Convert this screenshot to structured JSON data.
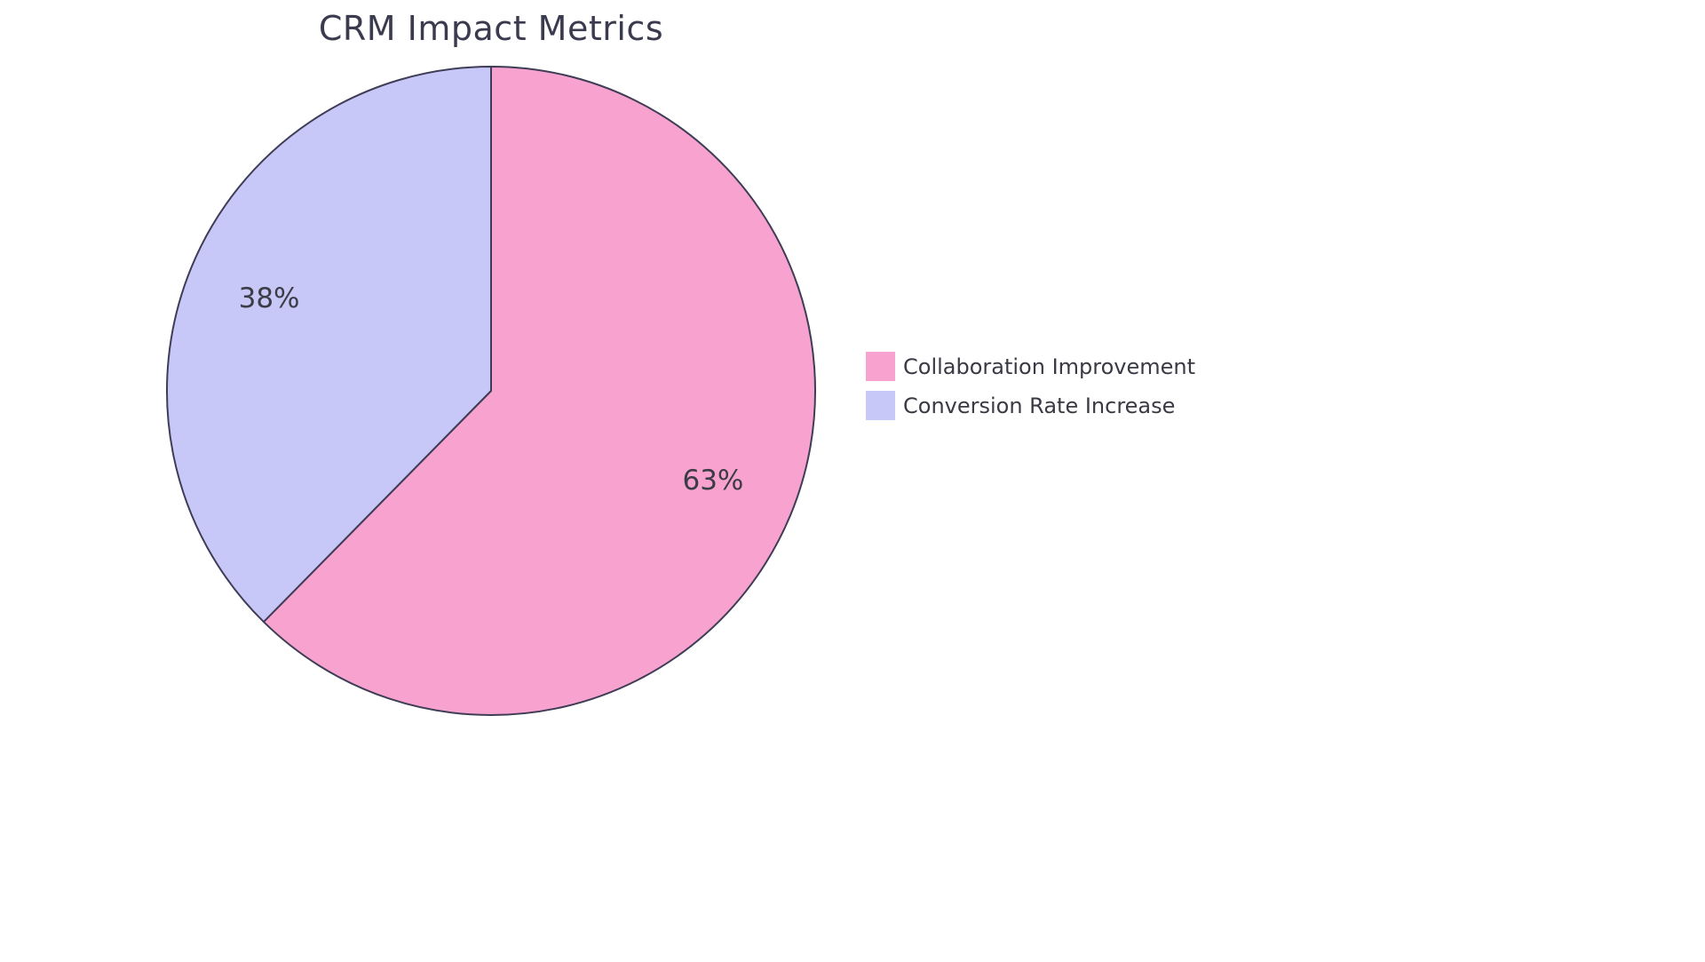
{
  "page": {
    "background_color": "#FFFFFF"
  },
  "chart_data": {
    "type": "pie",
    "title": "CRM Impact Metrics",
    "labels": [
      "Collaboration Improvement",
      "Conversion Rate Increase"
    ],
    "values": [
      63,
      38
    ],
    "display_labels": [
      "63%",
      "38%"
    ],
    "colors": [
      "#F8A3CF",
      "#C7C7F8"
    ],
    "stroke_color": "#3F3D56",
    "stroke_width": 2,
    "start_angle": "top",
    "direction": "clockwise",
    "legend_position": "right"
  }
}
